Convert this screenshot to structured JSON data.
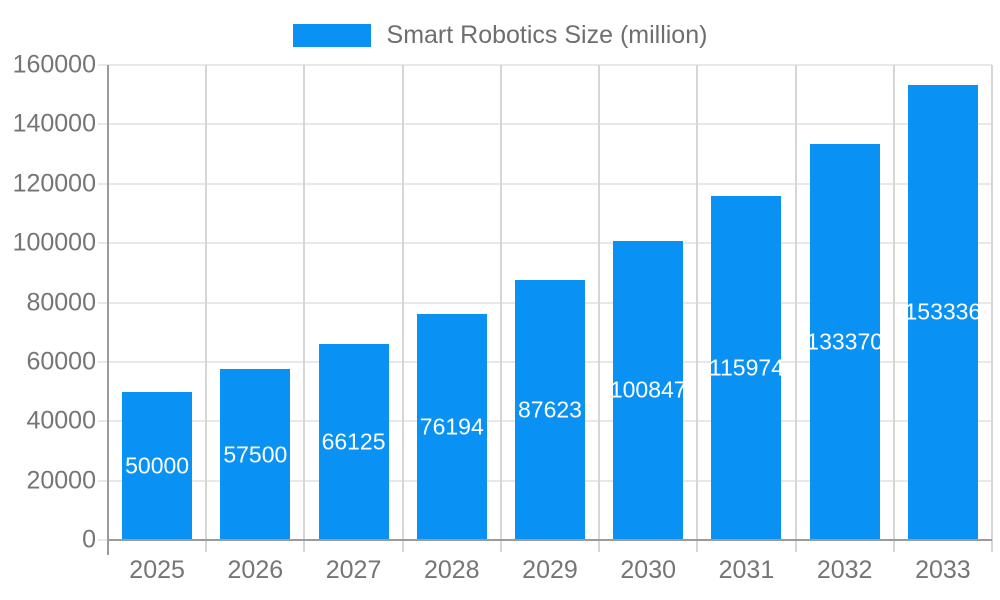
{
  "chart_data": {
    "type": "bar",
    "title": "Smart Robotics Size (million)",
    "categories": [
      "2025",
      "2026",
      "2027",
      "2028",
      "2029",
      "2030",
      "2031",
      "2032",
      "2033"
    ],
    "values": [
      50000,
      57500,
      66125,
      76194,
      87623,
      100847,
      115974,
      133370,
      153336
    ],
    "value_labels": [
      "50000",
      "57500",
      "66125",
      "76194",
      "87623",
      "100847",
      "115974",
      "133370",
      "153336"
    ],
    "xlabel": "",
    "ylabel": "",
    "ylim": [
      0,
      160000
    ],
    "yticks": [
      0,
      20000,
      40000,
      60000,
      80000,
      100000,
      120000,
      140000,
      160000
    ],
    "ytick_labels": [
      "0",
      "20000",
      "40000",
      "60000",
      "80000",
      "100000",
      "120000",
      "140000",
      "160000"
    ],
    "grid": true,
    "legend_position": "top",
    "colors": {
      "bar": "#0991f4",
      "bar_label": "#ffffff",
      "axis_text": "#757575",
      "legend_text": "#6e6e6e",
      "grid_horizontal": "#e8e8e8",
      "grid_vertical": "#d6d6d6",
      "axis_line": "#9b9b9b",
      "background": "#ffffff"
    }
  }
}
